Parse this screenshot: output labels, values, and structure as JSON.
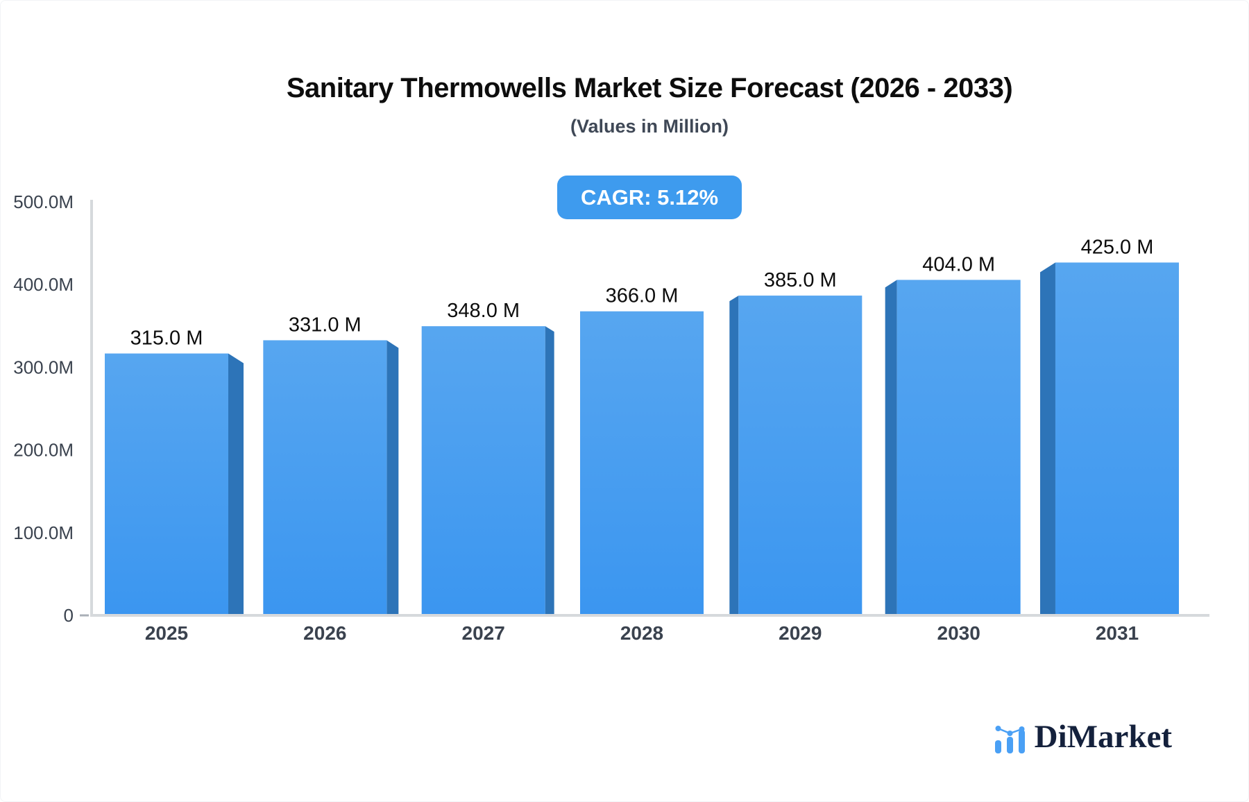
{
  "header": {
    "title": "Sanitary Thermowells Market Size Forecast (2026 - 2033)",
    "subtitle": "(Values in Million)",
    "cagr_label": "CAGR: 5.12%"
  },
  "chart_data": {
    "type": "bar",
    "title": "Sanitary Thermowells Market Size Forecast (2026 - 2033)",
    "subtitle": "(Values in Million)",
    "categories": [
      "2025",
      "2026",
      "2027",
      "2028",
      "2029",
      "2030",
      "2031"
    ],
    "values": [
      315,
      331,
      348,
      366,
      385,
      404,
      425
    ],
    "value_labels": [
      "315.0 M",
      "331.0 M",
      "348.0 M",
      "366.0 M",
      "385.0 M",
      "404.0 M",
      "425.0 M"
    ],
    "unit": "Million",
    "cagr_percent": 5.12,
    "ylim": [
      0,
      500
    ],
    "y_ticks": [
      "500.0M",
      "400.0M",
      "300.0M",
      "200.0M",
      "100.0M",
      "0"
    ],
    "grid": false,
    "legend": false,
    "bar_colors": {
      "front_top": "#57a6f0",
      "front_bottom": "#3b96f0",
      "side": "#2d74b8"
    }
  },
  "footer": {
    "brand": "DiMarket"
  },
  "colors": {
    "accent": "#3e9bee",
    "badge_text": "#ffffff",
    "axis_line": "#d6d9dc",
    "zero_tick": "#a9afb7",
    "tick_text": "#3a424e",
    "value_text": "#0c0c0c",
    "title_text": "#0d0d0d",
    "subtitle_text": "#3f4856",
    "brand_text": "#14213c",
    "brand_icon": "#4aa0f5"
  }
}
